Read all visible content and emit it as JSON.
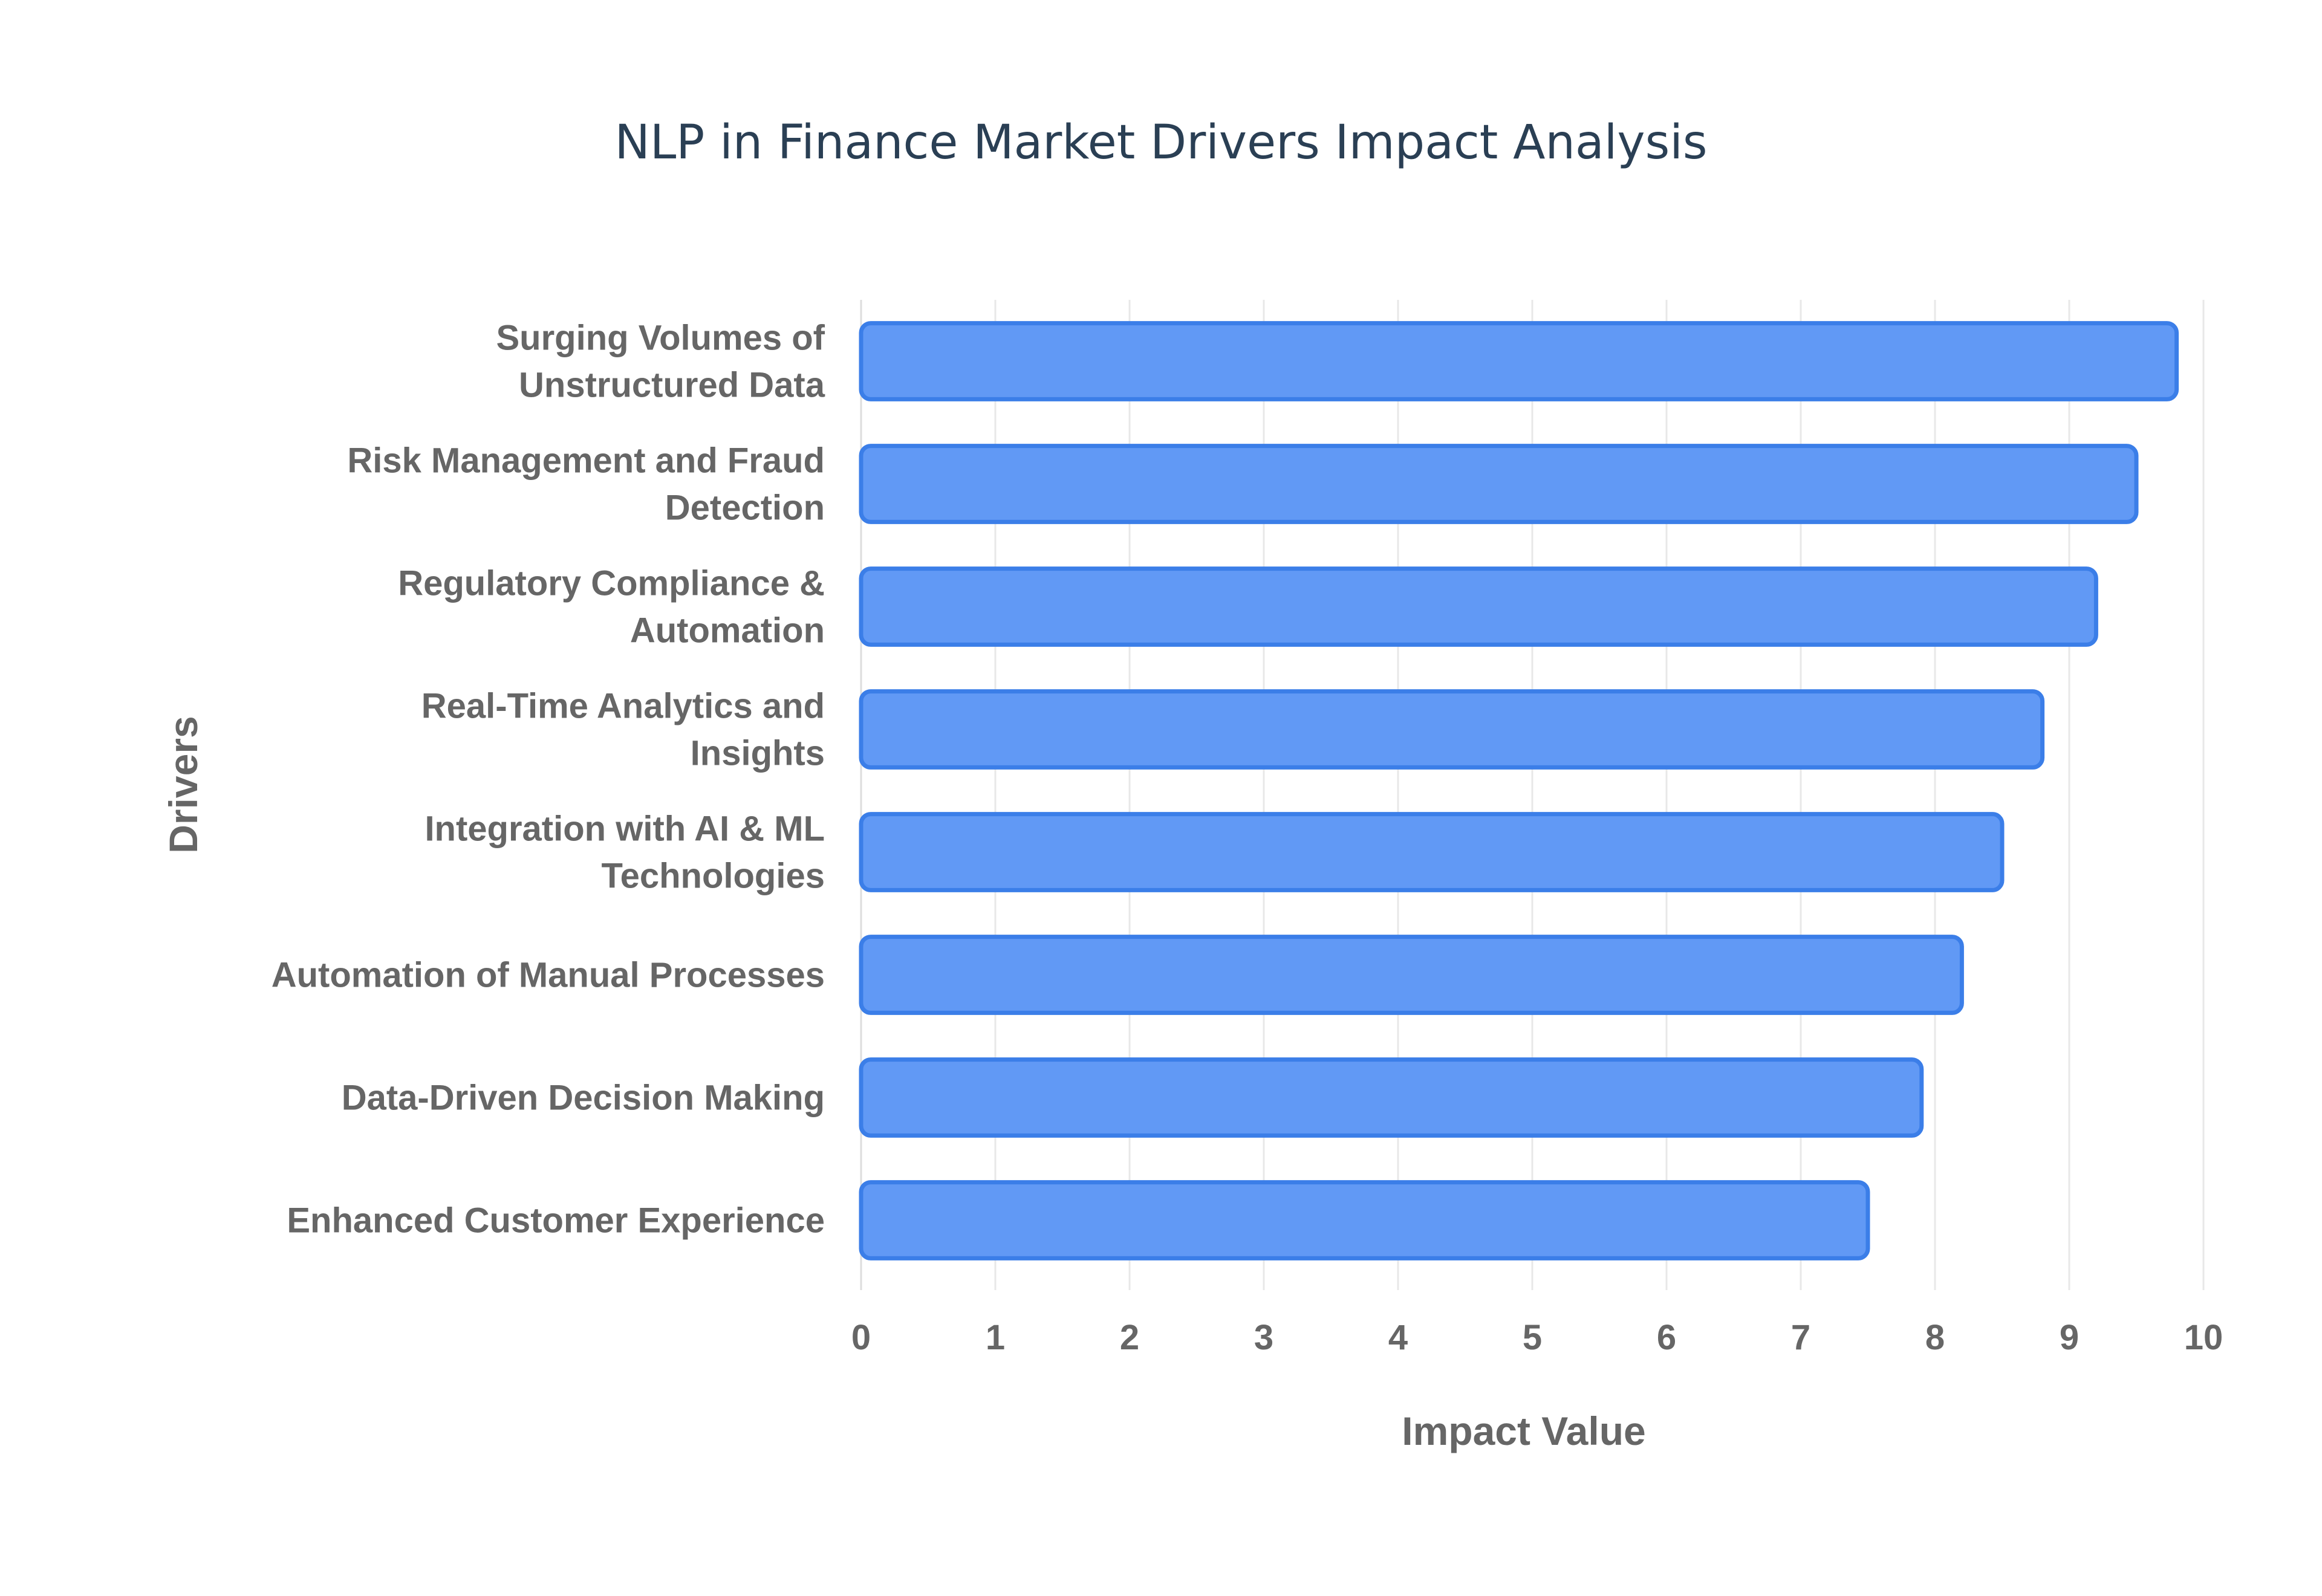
{
  "chart_data": {
    "type": "bar",
    "orientation": "horizontal",
    "title": "NLP in Finance Market Drivers Impact Analysis",
    "xlabel": "Impact Value",
    "ylabel": "Drivers",
    "xlim": [
      0,
      10
    ],
    "x_ticks": [
      "0",
      "1",
      "2",
      "3",
      "4",
      "5",
      "6",
      "7",
      "8",
      "9",
      "10"
    ],
    "grid": true,
    "legend": "none",
    "categories": [
      "Surging Volumes of Unstructured Data",
      "Risk Management and Fraud Detection",
      "Regulatory Compliance & Automation",
      "Real-Time Analytics and Insights",
      "Integration with AI & ML Technologies",
      "Automation of Manual Processes",
      "Data-Driven Decision Making",
      "Enhanced Customer Experience"
    ],
    "category_label_lines": [
      [
        "Surging Volumes of",
        "Unstructured Data"
      ],
      [
        "Risk Management and Fraud",
        "Detection"
      ],
      [
        "Regulatory Compliance &",
        "Automation"
      ],
      [
        "Real-Time Analytics and",
        "Insights"
      ],
      [
        "Integration with AI & ML",
        "Technologies"
      ],
      [
        "Automation of Manual Processes"
      ],
      [
        "Data-Driven Decision Making"
      ],
      [
        "Enhanced Customer Experience"
      ]
    ],
    "values": [
      9.8,
      9.5,
      9.2,
      8.8,
      8.5,
      8.2,
      7.9,
      7.5
    ],
    "colors": {
      "bar_fill": "#6199f5",
      "bar_stroke": "#3b7ee8",
      "title": "#2a3f54",
      "label": "#666666",
      "grid": "#e8e8e8"
    }
  }
}
